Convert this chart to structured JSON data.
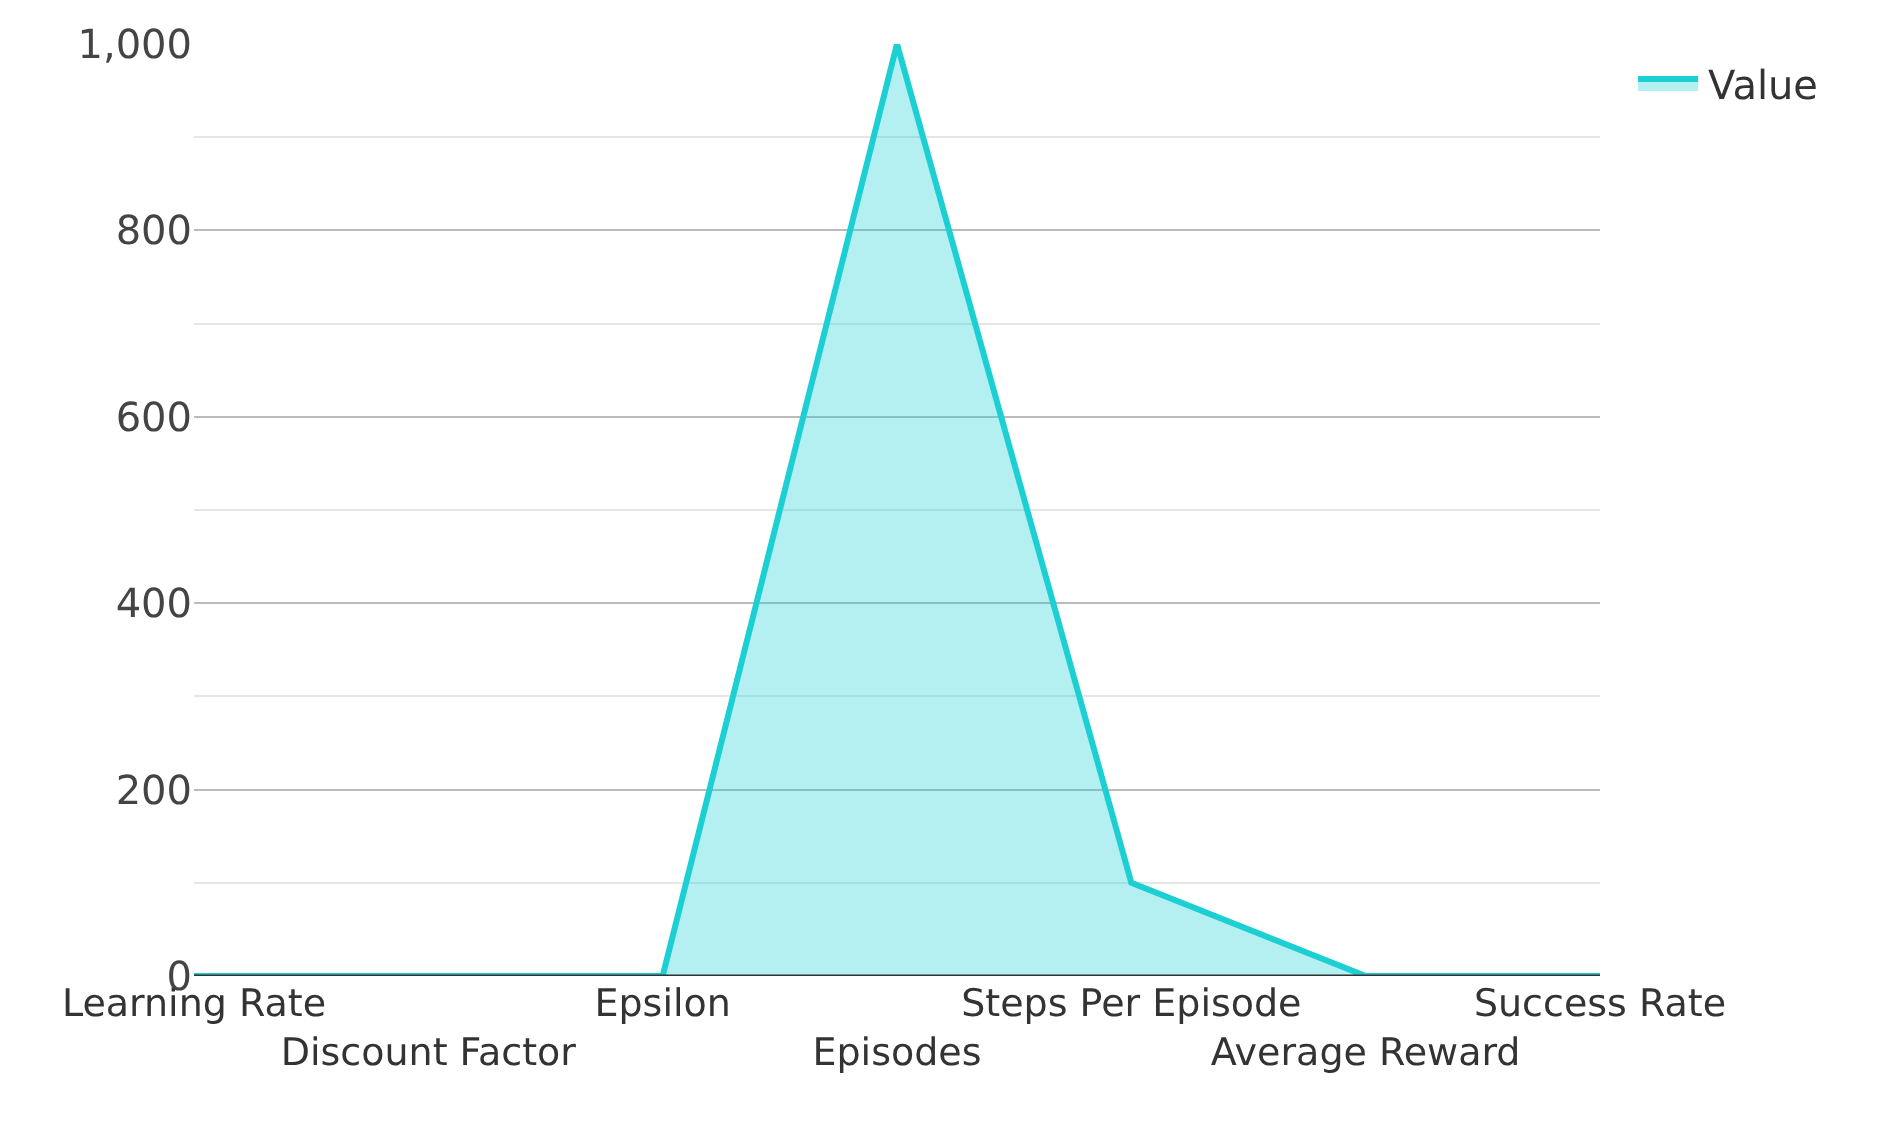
{
  "chart_data": {
    "type": "area",
    "categories": [
      "Learning Rate",
      "Discount Factor",
      "Epsilon",
      "Episodes",
      "Steps Per Episode",
      "Average Reward",
      "Success Rate"
    ],
    "series": [
      {
        "name": "Value",
        "color": "#1ccfd3",
        "values": [
          0,
          0,
          0,
          1000,
          100,
          0,
          0
        ]
      }
    ],
    "ylim": [
      0,
      1000
    ],
    "yticks": [
      0,
      200,
      400,
      600,
      {
        "value": 800,
        "label": "800"
      },
      {
        "value": 1000,
        "label": "1,000"
      }
    ],
    "grid": "y",
    "legend": "top right",
    "marker": "none",
    "line_style": "solid"
  }
}
